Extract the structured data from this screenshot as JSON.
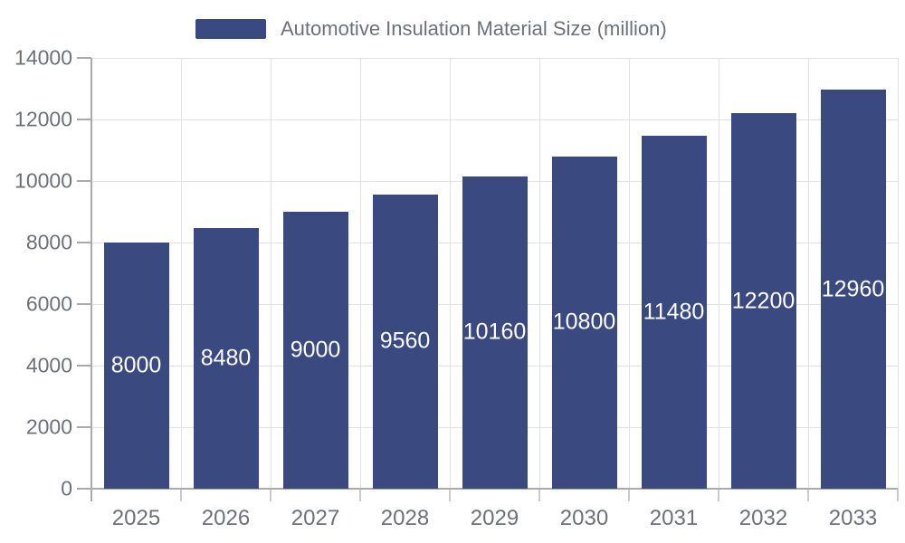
{
  "legend": {
    "label": "Automotive Insulation Material Size (million)"
  },
  "chart_data": {
    "type": "bar",
    "title": "Automotive Insulation Material Size (million)",
    "series_name": "Automotive Insulation Material Size (million)",
    "categories": [
      "2025",
      "2026",
      "2027",
      "2028",
      "2029",
      "2030",
      "2031",
      "2032",
      "2033"
    ],
    "values": [
      8000,
      8480,
      9000,
      9560,
      10160,
      10800,
      11480,
      12200,
      12960
    ],
    "value_labels": [
      "8000",
      "8480",
      "9000",
      "9560",
      "10160",
      "10800",
      "11480",
      "12200",
      "12960"
    ],
    "xlabel": "",
    "ylabel": "",
    "ylim": [
      0,
      14000
    ],
    "yticks": [
      0,
      2000,
      4000,
      6000,
      8000,
      10000,
      12000,
      14000
    ],
    "ytick_labels": [
      "0",
      "2000",
      "4000",
      "6000",
      "8000",
      "10000",
      "12000",
      "14000"
    ],
    "grid": "horizontal-and-vertical",
    "legend_position": "top",
    "value_label_position": "inside-center",
    "colors": {
      "bar": "#3A4A80",
      "bar_value_label": "#FFFFFF",
      "axis_text": "#6E7079",
      "grid_line": "#E2E2E2",
      "axis_line": "#AAAAAA",
      "x_tick_line": "#CCCCCC",
      "background": "#FFFFFF"
    }
  }
}
